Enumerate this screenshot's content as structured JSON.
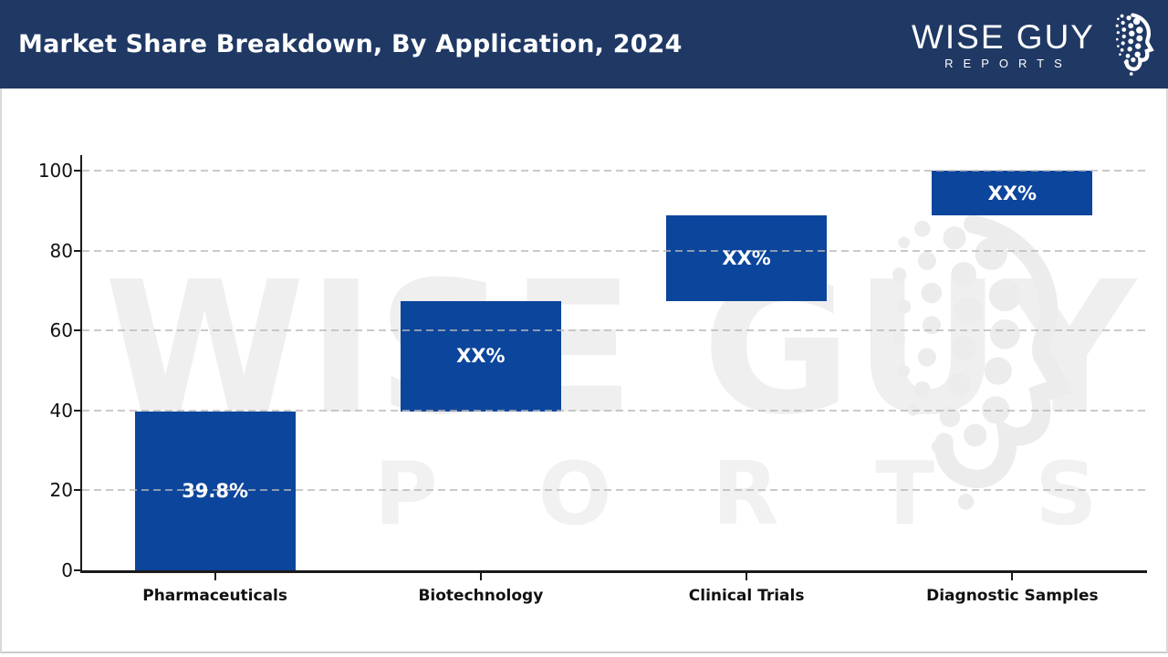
{
  "header": {
    "title": "Market Share Breakdown, By Application, 2024",
    "logo": {
      "name": "WISE GUY",
      "subname": "REPORTS"
    }
  },
  "watermark": {
    "line1": "WISE GUY",
    "line2": "PORTS"
  },
  "colors": {
    "header_bg": "#1F3864",
    "bar": "#0C459C",
    "bar_label": "#FFFFFF",
    "axis": "#1A1A1A",
    "gridline": "#BEBEBE",
    "watermark": "#EFEFEF"
  },
  "chart_data": {
    "type": "bar",
    "subtype": "waterfall",
    "title": "Market Share Breakdown, By Application, 2024",
    "categories": [
      "Pharmaceuticals",
      "Biotechnology",
      "Clinical Trials",
      "Diagnostic Samples"
    ],
    "series": [
      {
        "name": "Market Share",
        "segments": [
          {
            "category": "Pharmaceuticals",
            "start": 0,
            "end": 39.8,
            "label": "39.8%"
          },
          {
            "category": "Biotechnology",
            "start": 39.8,
            "end": 67.4,
            "label": "XX%"
          },
          {
            "category": "Clinical Trials",
            "start": 67.4,
            "end": 88.7,
            "label": "XX%"
          },
          {
            "category": "Diagnostic Samples",
            "start": 88.7,
            "end": 100,
            "label": "XX%"
          }
        ]
      }
    ],
    "xlabel": "",
    "ylabel": "",
    "ylim": [
      0,
      100
    ],
    "yticks": [
      0,
      20,
      40,
      60,
      80,
      100
    ],
    "grid": "horizontal-dashed",
    "legend": "none",
    "bar_label_note": "XX% placeholders shown for all bars except Pharmaceuticals"
  }
}
